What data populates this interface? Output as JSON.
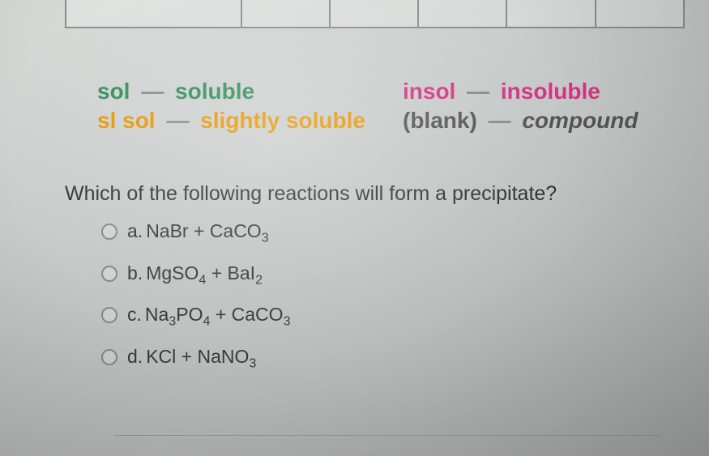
{
  "legend": {
    "sol": {
      "abbr": "sol",
      "word": "soluble",
      "color": "#2e8b57"
    },
    "insol": {
      "abbr": "insol",
      "word": "insoluble",
      "color": "#d63384"
    },
    "slsol": {
      "abbr": "sl sol",
      "word": "slightly soluble",
      "color": "#e69500"
    },
    "blank": {
      "abbr": "(blank)",
      "word": "compound",
      "color": "#555555"
    },
    "dash": "—"
  },
  "question": "Which of the following reactions will form a precipitate?",
  "options": {
    "a": {
      "letter": "a.",
      "text": "NaBr + CaCO₃"
    },
    "b": {
      "letter": "b.",
      "text": "MgSO₄ + BaI₂"
    },
    "c": {
      "letter": "c.",
      "text": "Na₃PO₄ + CaCO₃"
    },
    "d": {
      "letter": "d.",
      "text": "KCl + NaNO₃"
    }
  }
}
